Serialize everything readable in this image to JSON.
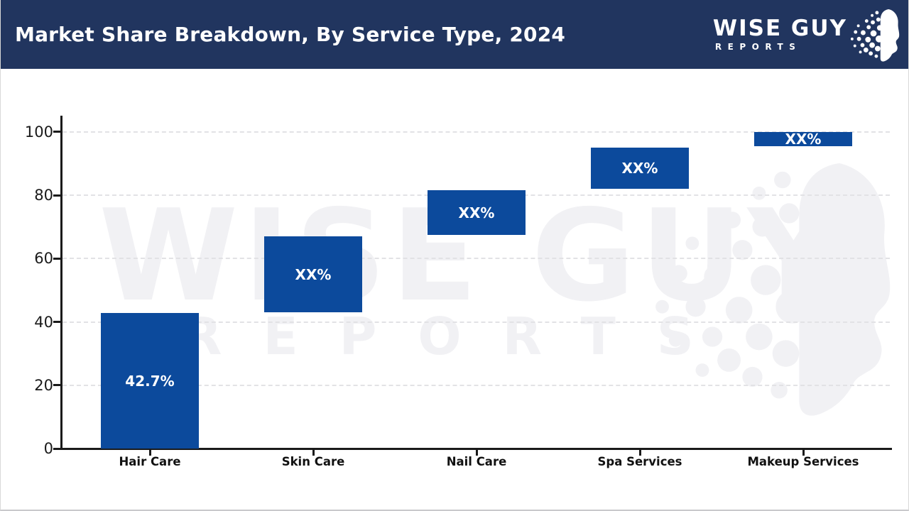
{
  "header": {
    "logo": {
      "line1": "WISE GUY",
      "line2": "REPORTS"
    }
  },
  "watermark": {
    "line1": "WISE GUY",
    "line2": "REPORTS"
  },
  "colors": {
    "header_bg": "#21355F",
    "bar": "#0C4A9C",
    "grid": "#E2E2E5",
    "axis": "#1A1A1A",
    "watermark": "#F1F1F4"
  },
  "chart_data": {
    "type": "bar",
    "subtype": "waterfall",
    "title": "Market Share Breakdown, By Service Type, 2024",
    "categories": [
      "Hair Care",
      "Skin Care",
      "Nail Care",
      "Spa Services",
      "Makeup Services"
    ],
    "segments": [
      {
        "category": "Hair Care",
        "start": 0,
        "end": 42.7,
        "label": "42.7%"
      },
      {
        "category": "Skin Care",
        "start": 43,
        "end": 67,
        "label": "XX%"
      },
      {
        "category": "Nail Care",
        "start": 67.5,
        "end": 81.5,
        "label": "XX%"
      },
      {
        "category": "Spa Services",
        "start": 82,
        "end": 95,
        "label": "XX%"
      },
      {
        "category": "Makeup Services",
        "start": 95.5,
        "end": 100,
        "label": "XX%"
      }
    ],
    "values_shown_on_bars": [
      "42.7%",
      "XX%",
      "XX%",
      "XX%",
      "XX%"
    ],
    "yticks": [
      0,
      20,
      40,
      60,
      80,
      100
    ],
    "ylim": [
      0,
      105
    ],
    "xlabel": "",
    "ylabel": "",
    "grid": "horizontal-dashed",
    "legend": "none",
    "bar_color": "#0C4A9C"
  }
}
